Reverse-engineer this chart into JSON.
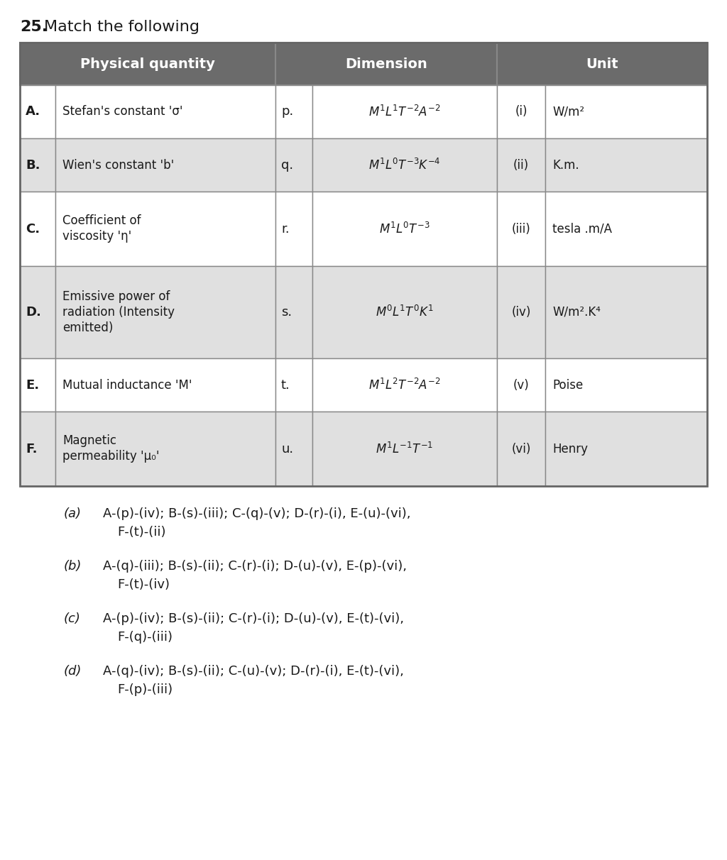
{
  "title_bold": "25.",
  "title_normal": "  Match the following",
  "header_bg": "#6b6b6b",
  "header_text_color": "#ffffff",
  "row_bg_odd": "#ffffff",
  "row_bg_even": "#e0e0e0",
  "border_color": "#888888",
  "text_color": "#1a1a1a",
  "rows": [
    {
      "letter": "A.",
      "physical": [
        "Stefan's constant 'σ'"
      ],
      "dim_label": "p.",
      "dim_formula": "$M^1L^1T^{-2}A^{-2}$",
      "unit_label": "(i)",
      "unit_text": "W/m²"
    },
    {
      "letter": "B.",
      "physical": [
        "Wien's constant 'b'"
      ],
      "dim_label": "q.",
      "dim_formula": "$M^1L^0T^{-3}K^{-4}$",
      "unit_label": "(ii)",
      "unit_text": "K.m."
    },
    {
      "letter": "C.",
      "physical": [
        "Coefficient of",
        "viscosity 'η'"
      ],
      "dim_label": "r.",
      "dim_formula": "$M^1L^0T^{-3}$",
      "unit_label": "(iii)",
      "unit_text": "tesla .m/A"
    },
    {
      "letter": "D.",
      "physical": [
        "Emissive power of",
        "radiation (Intensity",
        "emitted)"
      ],
      "dim_label": "s.",
      "dim_formula": "$M^0L^1T^0K^1$",
      "unit_label": "(iv)",
      "unit_text": "W/m².K⁴"
    },
    {
      "letter": "E.",
      "physical": [
        "Mutual inductance 'M'"
      ],
      "dim_label": "t.",
      "dim_formula": "$M^1L^2T^{-2}A^{-2}$",
      "unit_label": "(v)",
      "unit_text": "Poise"
    },
    {
      "letter": "F.",
      "physical": [
        "Magnetic",
        "permeability 'μ₀'"
      ],
      "dim_label": "u.",
      "dim_formula": "$M^1L^{-1}T^{-1}$",
      "unit_label": "(vi)",
      "unit_text": "Henry"
    }
  ],
  "options": [
    {
      "label": "(a)",
      "line1": "A-(p)-(iv); B-(s)-(iii); C-(q)-(v); D-(r)-(i), E-(u)-(vi),",
      "line2": "F-(t)-(ii)"
    },
    {
      "label": "(b)",
      "line1": "A-(q)-(iii); B-(s)-(ii); C-(r)-(i); D-(u)-(v), E-(p)-(vi),",
      "line2": "F-(t)-(iv)"
    },
    {
      "label": "(c)",
      "line1": "A-(p)-(iv); B-(s)-(ii); C-(r)-(i); D-(u)-(v), E-(t)-(vi),",
      "line2": "F-(q)-(iii)"
    },
    {
      "label": "(d)",
      "line1": "A-(q)-(iv); B-(s)-(ii); C-(u)-(v); D-(r)-(i), E-(t)-(vi),",
      "line2": "F-(p)-(iii)"
    }
  ]
}
